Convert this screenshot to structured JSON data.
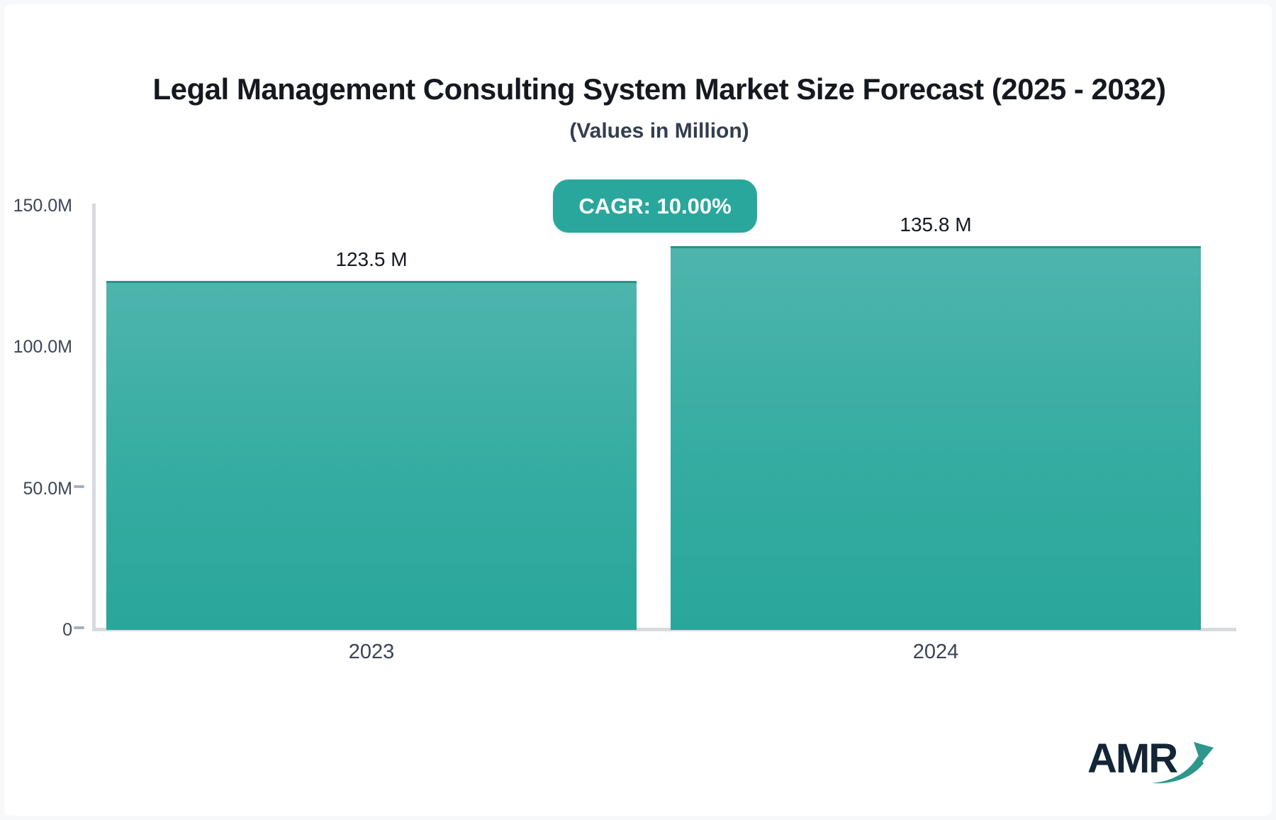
{
  "header": {
    "title": "Legal Management Consulting System Market Size Forecast (2025 - 2032)",
    "subtitle": "(Values in Million)"
  },
  "cagr_badge": {
    "label": "CAGR: 10.00%"
  },
  "chart_data": {
    "type": "bar",
    "title": "Legal Management Consulting System Market Size Forecast (2025 - 2032)",
    "subtitle": "(Values in Million)",
    "categories": [
      "2023",
      "2024"
    ],
    "values": [
      123.5,
      135.8
    ],
    "value_labels": [
      "123.5 M",
      "135.8 M"
    ],
    "unit": "Million",
    "cagr": "10.00%",
    "ylim": [
      0,
      150
    ],
    "yticks": [
      "150.0M",
      "100.0M",
      "50.0M",
      "0"
    ],
    "ytick_values": [
      150,
      100,
      50,
      0
    ],
    "grid": false,
    "legend": "none",
    "bar_color_top": "#4eb5ad",
    "bar_color_bottom": "#2aa69a",
    "bar_border_color": "#2a9389"
  },
  "colors": {
    "accent_teal": "#2aa79c",
    "axis_line": "#d7dade",
    "title_text": "#15191f",
    "axis_text": "#3c4657",
    "background": "#ffffff"
  },
  "logo": {
    "text": "AMR",
    "arrow_color": "#2e968c"
  }
}
